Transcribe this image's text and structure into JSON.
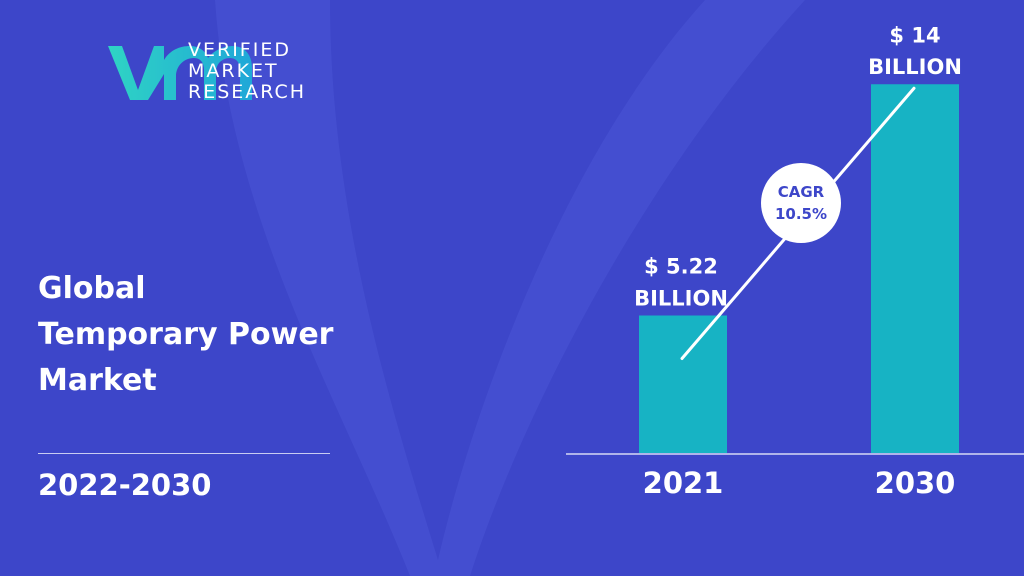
{
  "brand": {
    "lines": [
      "VERIFIED",
      "MARKET",
      "RESEARCH"
    ],
    "colors": {
      "logo_gradient_start": "#2fd4c4",
      "logo_gradient_end": "#1fa7d8"
    }
  },
  "heading": {
    "lines": [
      "Global",
      "Temporary Power",
      "Market"
    ],
    "period": "2022-2030"
  },
  "colors": {
    "background": "#3d46c9",
    "background_shape": "#4a55d6",
    "bar": "#17b3c4",
    "text": "#ffffff",
    "cagr_text": "#3d46c9"
  },
  "chart_data": {
    "type": "bar",
    "categories": [
      "2021",
      "2030"
    ],
    "values": [
      5.22,
      14
    ],
    "value_labels": [
      [
        "$ 5.22",
        "BILLION"
      ],
      [
        "$ 14",
        "BILLION"
      ]
    ],
    "unit": "BILLION",
    "annotation": {
      "lines": [
        "CAGR",
        "10.5%"
      ]
    },
    "ylim": [
      0,
      15.3
    ],
    "grid": false,
    "legend": "none"
  }
}
